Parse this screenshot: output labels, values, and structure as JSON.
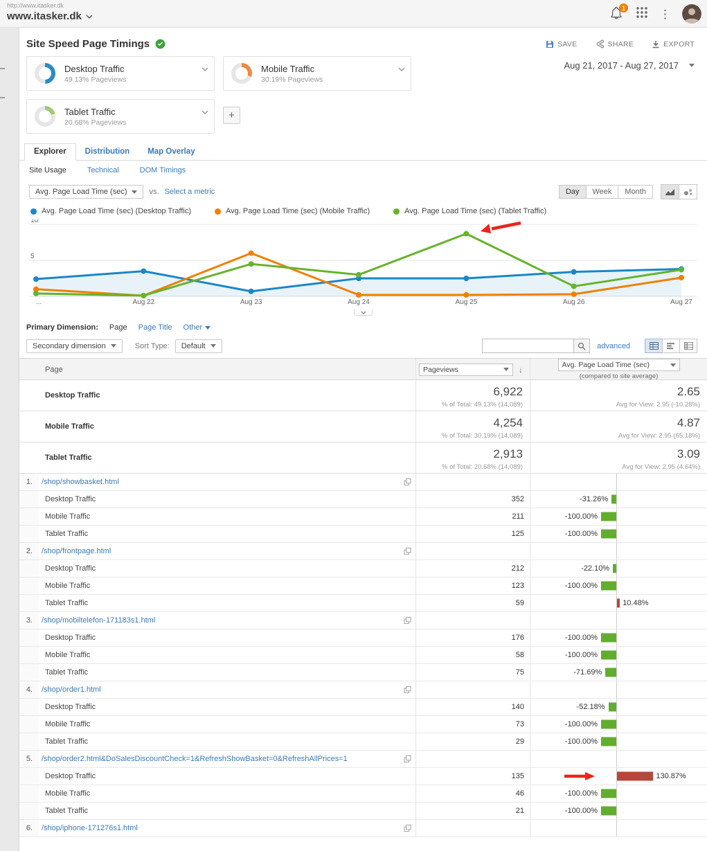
{
  "header": {
    "url": "http://www.itasker.dk",
    "account": "www.itasker.dk",
    "notification_count": "1"
  },
  "report": {
    "title": "Site Speed Page Timings",
    "actions": {
      "save": "SAVE",
      "share": "SHARE",
      "export": "EXPORT"
    },
    "date_range": "Aug 21, 2017 - Aug 27, 2017"
  },
  "segments": [
    {
      "name": "Desktop Traffic",
      "detail": "49.13% Pageviews",
      "pct": 49.13,
      "color": "#2d8ac5"
    },
    {
      "name": "Mobile Traffic",
      "detail": "30.19% Pageviews",
      "pct": 30.19,
      "color": "#ef8a40"
    },
    {
      "name": "Tablet Traffic",
      "detail": "20.68% Pageviews",
      "pct": 20.68,
      "color": "#9ccb70"
    }
  ],
  "tabs": [
    "Explorer",
    "Distribution",
    "Map Overlay"
  ],
  "subtabs": [
    "Site Usage",
    "Technical",
    "DOM Timings"
  ],
  "metric_bar": {
    "metric": "Avg. Page Load Time (sec)",
    "vs": "vs.",
    "select_metric": "Select a metric",
    "granularity": [
      "Day",
      "Week",
      "Month"
    ],
    "selected_granularity": "Day"
  },
  "chart_data": {
    "type": "line",
    "x": [
      "...",
      "Aug 22",
      "Aug 23",
      "Aug 24",
      "Aug 25",
      "Aug 26",
      "Aug 27"
    ],
    "ylim": [
      0,
      10
    ],
    "yticks": [
      5,
      10
    ],
    "series": [
      {
        "name": "Avg. Page Load Time (sec) (Desktop Traffic)",
        "color": "#1a86c8",
        "fill": true,
        "values": [
          2.4,
          3.5,
          0.7,
          2.5,
          2.5,
          3.4,
          3.8
        ]
      },
      {
        "name": "Avg. Page Load Time (sec) (Mobile Traffic)",
        "color": "#f08000",
        "values": [
          1.0,
          0.1,
          6.0,
          0.2,
          0.2,
          0.3,
          2.6
        ]
      },
      {
        "name": "Avg. Page Load Time (sec) (Tablet Traffic)",
        "color": "#65b32e",
        "values": [
          0.4,
          0.1,
          4.5,
          3.0,
          8.7,
          1.4,
          3.7
        ]
      }
    ],
    "annotation": "red arrow pointing at Tablet Traffic peak on Aug 25"
  },
  "primary_dimension": {
    "label": "Primary Dimension:",
    "options": [
      "Page",
      "Page Title",
      "Other"
    ],
    "active": "Page"
  },
  "toolbar": {
    "secondary": "Secondary dimension",
    "sort_type_label": "Sort Type:",
    "sort_type": "Default",
    "search_value": "",
    "advanced": "advanced"
  },
  "table": {
    "columns": {
      "page": "Page",
      "pageviews": "Pageviews",
      "metric": "Avg. Page Load Time (sec)",
      "metric_note": "(compared to site average)"
    },
    "summary": [
      {
        "label": "Desktop Traffic",
        "pageviews": "6,922",
        "pageviews_note": "% of Total: 49.13% (14,089)",
        "value": "2.65",
        "value_note": "Avg for View: 2.95 (-10.28%)"
      },
      {
        "label": "Mobile Traffic",
        "pageviews": "4,254",
        "pageviews_note": "% of Total: 30.19% (14,089)",
        "value": "4.87",
        "value_note": "Avg for View: 2.95 (65.18%)"
      },
      {
        "label": "Tablet Traffic",
        "pageviews": "2,913",
        "pageviews_note": "% of Total: 20.68% (14,089)",
        "value": "3.09",
        "value_note": "Avg for View: 2.95 (4.64%)"
      }
    ],
    "rows": [
      {
        "index": "1.",
        "url": "/shop/showbasket.html",
        "segments": [
          {
            "label": "Desktop Traffic",
            "pageviews": "352",
            "pct": -31.26,
            "pct_label": "-31.26%"
          },
          {
            "label": "Mobile Traffic",
            "pageviews": "211",
            "pct": -100.0,
            "pct_label": "-100.00%"
          },
          {
            "label": "Tablet Traffic",
            "pageviews": "125",
            "pct": -100.0,
            "pct_label": "-100.00%"
          }
        ]
      },
      {
        "index": "2.",
        "url": "/shop/frontpage.html",
        "segments": [
          {
            "label": "Desktop Traffic",
            "pageviews": "212",
            "pct": -22.1,
            "pct_label": "-22.10%"
          },
          {
            "label": "Mobile Traffic",
            "pageviews": "123",
            "pct": -100.0,
            "pct_label": "-100.00%"
          },
          {
            "label": "Tablet Traffic",
            "pageviews": "59",
            "pct": 10.48,
            "pct_label": "10.48%"
          }
        ]
      },
      {
        "index": "3.",
        "url": "/shop/mobiltelefon-171183s1.html",
        "segments": [
          {
            "label": "Desktop Traffic",
            "pageviews": "176",
            "pct": -100.0,
            "pct_label": "-100.00%"
          },
          {
            "label": "Mobile Traffic",
            "pageviews": "58",
            "pct": -100.0,
            "pct_label": "-100.00%"
          },
          {
            "label": "Tablet Traffic",
            "pageviews": "75",
            "pct": -71.69,
            "pct_label": "-71.69%"
          }
        ]
      },
      {
        "index": "4.",
        "url": "/shop/order1.html",
        "segments": [
          {
            "label": "Desktop Traffic",
            "pageviews": "140",
            "pct": -52.18,
            "pct_label": "-52.18%"
          },
          {
            "label": "Mobile Traffic",
            "pageviews": "73",
            "pct": -100.0,
            "pct_label": "-100.00%"
          },
          {
            "label": "Tablet Traffic",
            "pageviews": "29",
            "pct": -100.0,
            "pct_label": "-100.00%"
          }
        ]
      },
      {
        "index": "5.",
        "url": "/shop/order2.html&DoSalesDiscountCheck=1&RefreshShowBasket=0&RefreshAllPrices=1",
        "segments": [
          {
            "label": "Desktop Traffic",
            "pageviews": "135",
            "pct": 130.87,
            "pct_label": "130.87%",
            "arrow": true
          },
          {
            "label": "Mobile Traffic",
            "pageviews": "46",
            "pct": -100.0,
            "pct_label": "-100.00%"
          },
          {
            "label": "Tablet Traffic",
            "pageviews": "21",
            "pct": -100.0,
            "pct_label": "-100.00%"
          }
        ]
      },
      {
        "index": "6.",
        "url": "/shop/iphone-171276s1.html",
        "segments": []
      }
    ]
  }
}
